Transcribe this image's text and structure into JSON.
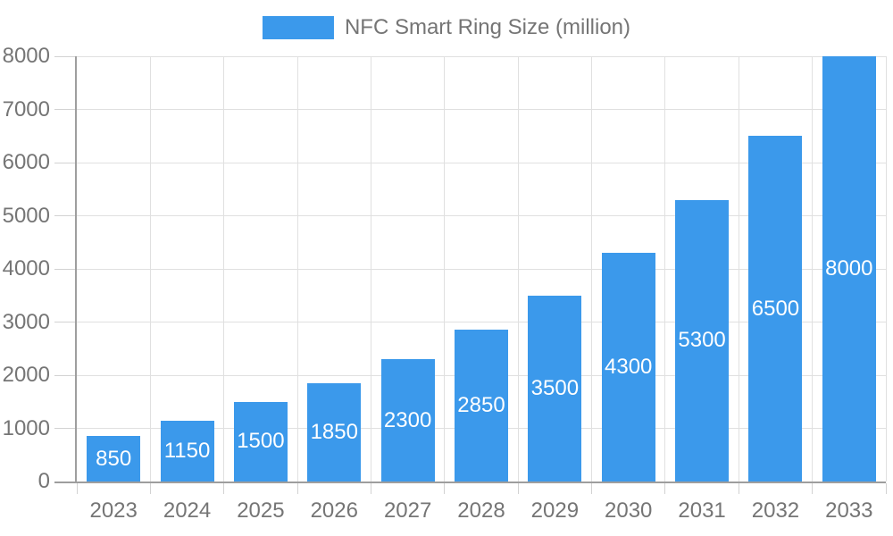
{
  "legend": {
    "label": "NFC Smart Ring Size (million)"
  },
  "colors": {
    "bar": "#3B99EB",
    "grid": "#E0E0E0",
    "tick": "#D2D2D2",
    "axis": "#9E9E9E",
    "text": "#757575",
    "value_label": "#FFFFFF",
    "background": "#FFFFFF"
  },
  "chart_data": {
    "type": "bar",
    "title": "NFC Smart Ring Size (million)",
    "categories": [
      "2023",
      "2024",
      "2025",
      "2026",
      "2027",
      "2028",
      "2029",
      "2030",
      "2031",
      "2032",
      "2033"
    ],
    "values": [
      850,
      1150,
      1500,
      1850,
      2300,
      2850,
      3500,
      4300,
      5300,
      6500,
      8000
    ],
    "xlabel": "",
    "ylabel": "",
    "ylim": [
      0,
      8000
    ],
    "ytick_interval": 1000,
    "ytick_labels": [
      "0",
      "1000",
      "2000",
      "3000",
      "4000",
      "5000",
      "6000",
      "7000",
      "8000"
    ],
    "grid": true,
    "legend_position": "top-center",
    "bar_label_position": "inside-center"
  }
}
